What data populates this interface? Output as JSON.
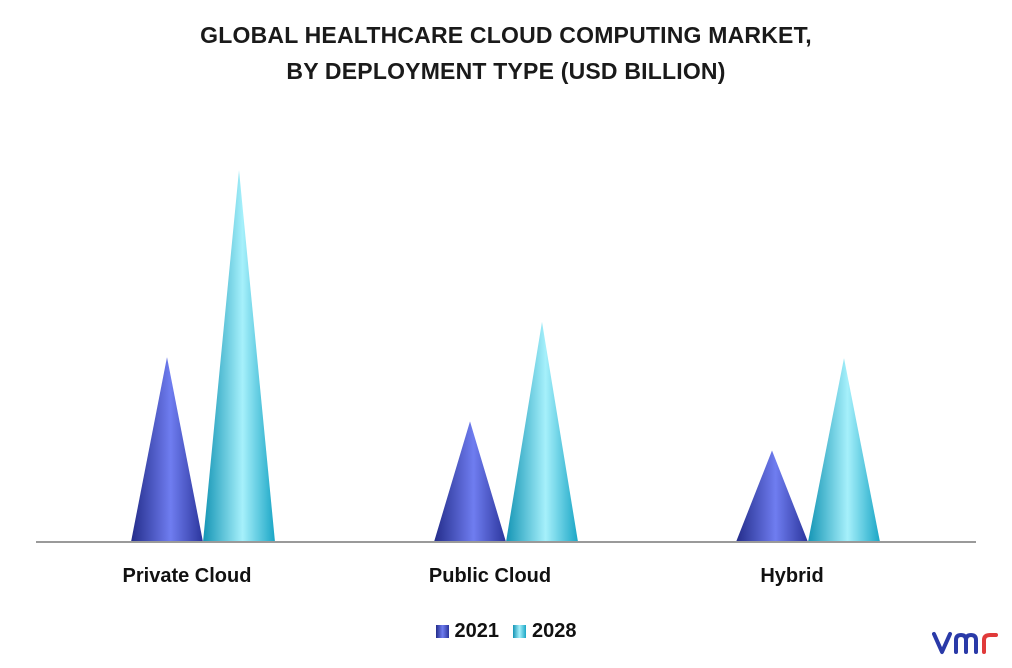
{
  "chart_data": {
    "type": "bar",
    "title_lines": [
      "GLOBAL HEALTHCARE CLOUD COMPUTING MARKET,",
      "BY DEPLOYMENT TYPE (USD BILLION)"
    ],
    "categories": [
      "Private Cloud",
      "Public Cloud",
      "Hybrid"
    ],
    "series": [
      {
        "name": "2021",
        "values": [
          18.4,
          12.0,
          9.1
        ],
        "color": "#3c49c8"
      },
      {
        "name": "2028",
        "values": [
          37.0,
          21.9,
          18.3
        ],
        "color": "#2fc4e4"
      }
    ],
    "ylim": [
      0,
      40
    ],
    "grid": false,
    "legend_position": "bottom-center",
    "bar_shape": "cone"
  }
}
